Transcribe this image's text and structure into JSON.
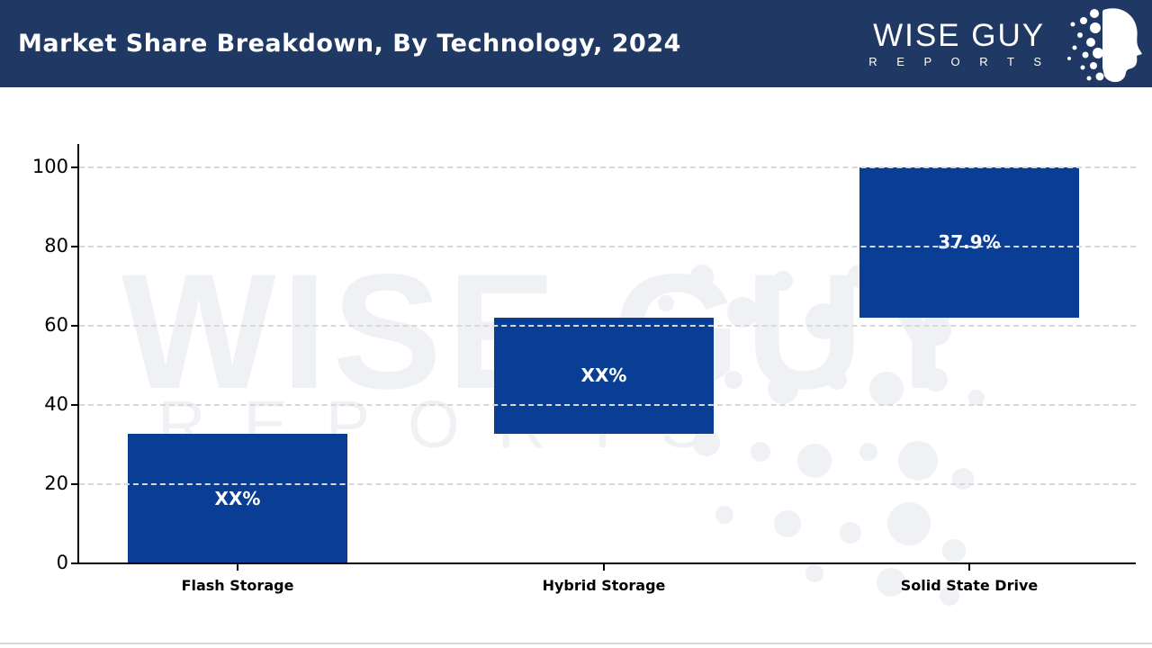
{
  "header": {
    "title": "Market Share Breakdown, By Technology, 2024",
    "logo_line1": "WISE GUY",
    "logo_line2": "R E P O R T S"
  },
  "watermark": {
    "line1": "WISE GUY",
    "line2": "REPORTS"
  },
  "chart_data": {
    "type": "bar",
    "subtype": "floating-waterfall",
    "title": "Market Share Breakdown, By Technology, 2024",
    "categories": [
      "Flash Storage",
      "Hybrid Storage",
      "Solid State Drive"
    ],
    "segments": [
      {
        "category": "Flash Storage",
        "start": 0,
        "end": 32.7,
        "label": "XX%"
      },
      {
        "category": "Hybrid Storage",
        "start": 32.7,
        "end": 62.1,
        "label": "XX%"
      },
      {
        "category": "Solid State Drive",
        "start": 62.1,
        "end": 100,
        "label": "37.9%"
      }
    ],
    "xlabel": "",
    "ylabel": "",
    "ylim": [
      0,
      100
    ],
    "yticks": [
      0,
      20,
      40,
      60,
      80,
      100
    ],
    "grid": "horizontal-dashed-over-bars",
    "legend": "none",
    "bar_color": "#0a3e94",
    "bar_label_color": "#ffffff"
  },
  "colors": {
    "header_bg": "#1f3864",
    "bar": "#0a3e94",
    "grid": "#d9d9d9",
    "axis": "#000000",
    "watermark": "#f0f1f4"
  }
}
